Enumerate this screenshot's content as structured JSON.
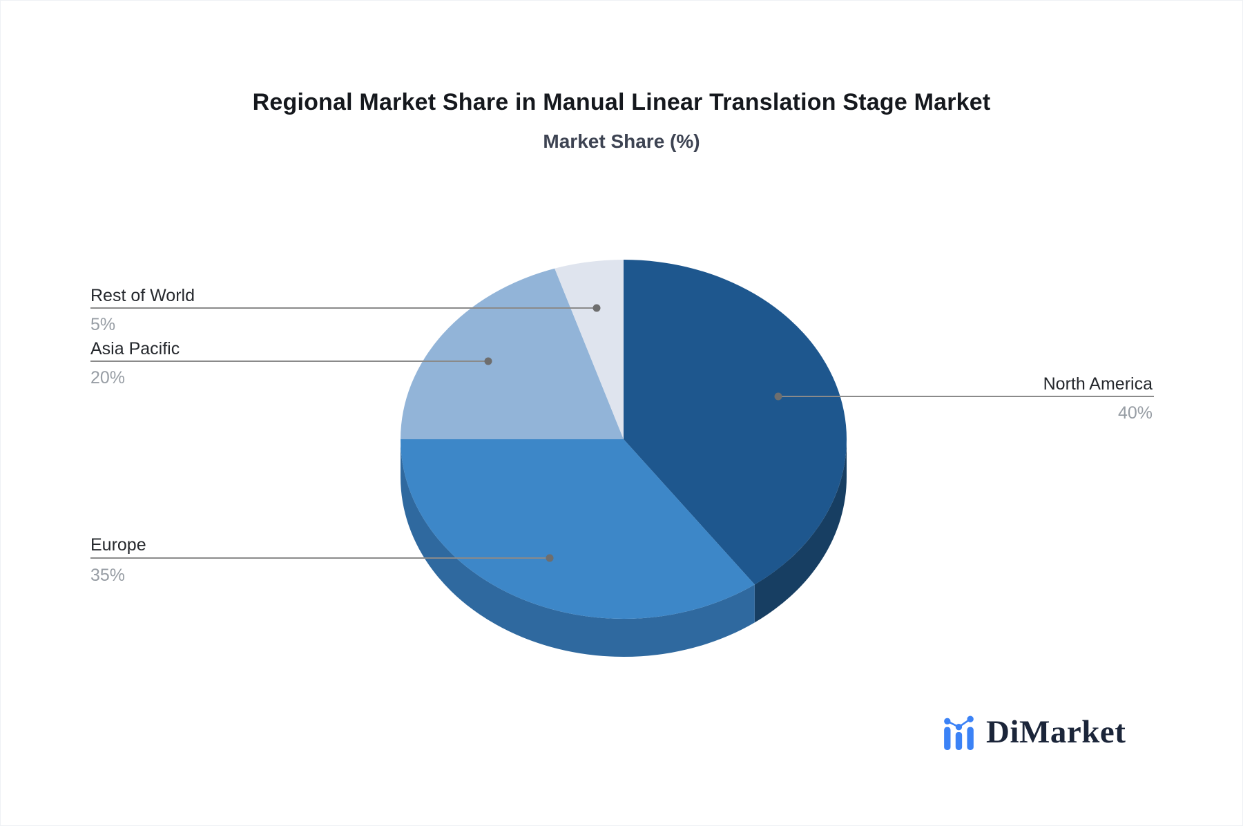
{
  "header": {
    "title": "Regional Market Share in Manual Linear Translation Stage Market",
    "subtitle": "Market Share (%)"
  },
  "chart_data": {
    "type": "pie",
    "style": "3d",
    "title": "Regional Market Share in Manual Linear Translation Stage Market",
    "subtitle": "Market Share (%)",
    "unit": "%",
    "start_angle_deg": 0,
    "direction": "clockwise",
    "legend_position": "outside-leader-lines",
    "slices": [
      {
        "label": "North America",
        "value": 40,
        "pct": "40%",
        "color": "#1E578E",
        "side_color": "#173E62"
      },
      {
        "label": "Europe",
        "value": 35,
        "pct": "35%",
        "color": "#3D87C8",
        "side_color": "#2F699F"
      },
      {
        "label": "Asia Pacific",
        "value": 20,
        "pct": "20%",
        "color": "#92B4D8",
        "side_color": null
      },
      {
        "label": "Rest of World",
        "value": 5,
        "pct": "5%",
        "color": "#DFE4EE",
        "side_color": null
      }
    ],
    "leader_line_color": "#8a8a8a",
    "leader_dot_color": "#6e6e6e"
  },
  "branding": {
    "logo_text": "DiMarket",
    "logo_icon": "bar-chart-trend-icon",
    "logo_accent_color": "#3B82F6",
    "logo_text_color": "#1B2539"
  }
}
